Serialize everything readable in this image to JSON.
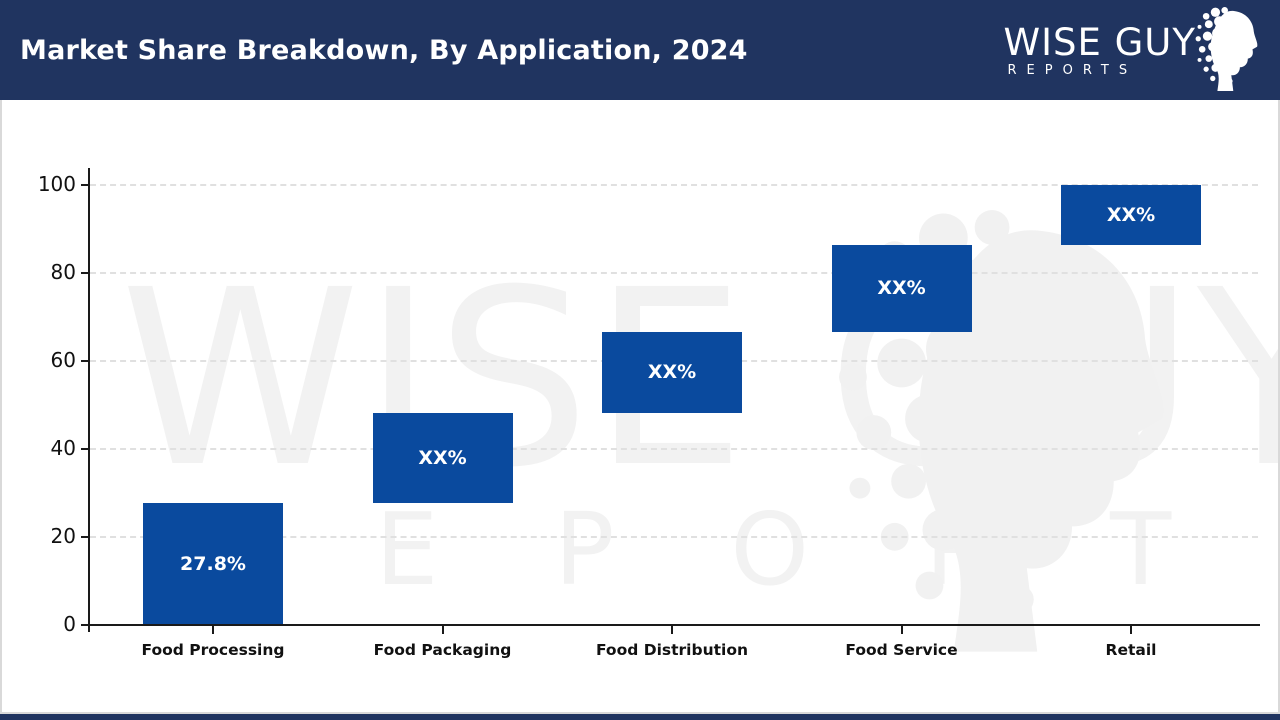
{
  "header": {
    "title": "Market Share Breakdown, By Application, 2024"
  },
  "logo": {
    "line1": "WISE GUY",
    "line2": "REPORTS"
  },
  "watermark": {
    "line1": "WISE GUY",
    "line2": "R E P O R T S"
  },
  "colors": {
    "header_bg": "#203460",
    "footer_bg": "#203460",
    "bar": "#0a4a9e",
    "bar_label": "#ffffff",
    "axis": "#1a1a1a",
    "tick_label": "#111111",
    "grid": "#e0e0e0",
    "watermark": "#f2f2f2"
  },
  "chart_data": {
    "type": "bar",
    "subtype": "waterfall",
    "title": "Market Share Breakdown, By Application, 2024",
    "categories": [
      "Food Processing",
      "Food Packaging",
      "Food Distribution",
      "Food Service",
      "Retail"
    ],
    "bars": [
      {
        "category": "Food Processing",
        "start": 0,
        "end": 27.8,
        "label": "27.8%"
      },
      {
        "category": "Food Packaging",
        "start": 27.8,
        "end": 48.2,
        "label": "XX%"
      },
      {
        "category": "Food Distribution",
        "start": 48.2,
        "end": 66.6,
        "label": "XX%"
      },
      {
        "category": "Food Service",
        "start": 66.6,
        "end": 86.4,
        "label": "XX%"
      },
      {
        "category": "Retail",
        "start": 86.4,
        "end": 100,
        "label": "XX%"
      }
    ],
    "xlabel": "",
    "ylabel": "",
    "ylim": [
      0,
      100
    ],
    "yticks": [
      0,
      20,
      40,
      60,
      80,
      100
    ],
    "grid": "horizontal dashed",
    "legend": "none"
  }
}
